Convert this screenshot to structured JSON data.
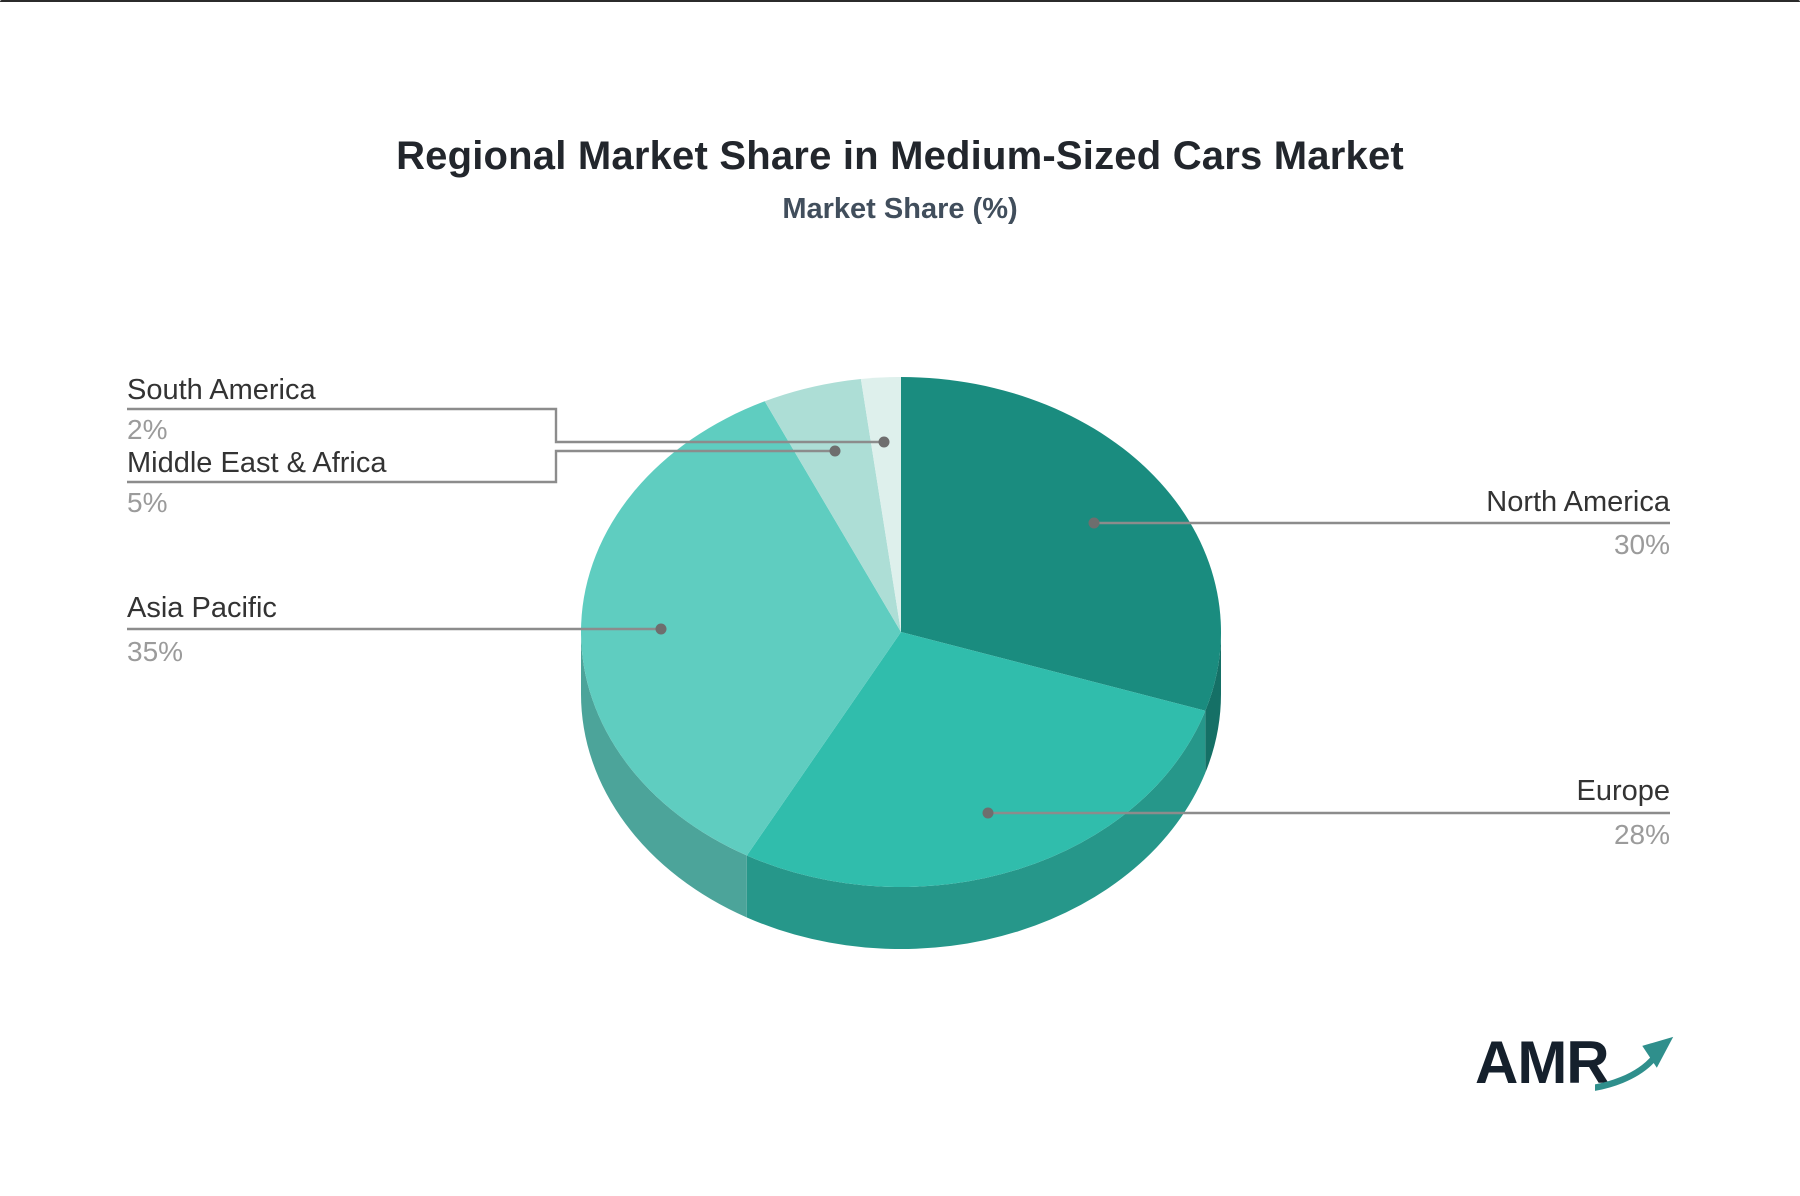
{
  "title": "Regional Market Share in Medium-Sized Cars Market",
  "subtitle": "Market Share (%)",
  "logo": {
    "text": "AMR"
  },
  "chart_data": {
    "type": "pie",
    "title": "Regional Market Share in Medium-Sized Cars Market",
    "subtitle": "Market Share (%)",
    "unit": "%",
    "style": "3d-pie",
    "start_angle": "12 o'clock",
    "direction": "clockwise",
    "legend_position": "none (callout labels with leader lines)",
    "slices": [
      {
        "label": "North America",
        "value": 30,
        "display": "30%",
        "color": "#1A8C7F",
        "callout_side": "right"
      },
      {
        "label": "Europe",
        "value": 28,
        "display": "28%",
        "color": "#30BDAC",
        "callout_side": "right"
      },
      {
        "label": "Asia Pacific",
        "value": 35,
        "display": "35%",
        "color": "#5FCDC0",
        "callout_side": "left"
      },
      {
        "label": "Middle East & Africa",
        "value": 5,
        "display": "5%",
        "color": "#ADDED6",
        "callout_side": "left"
      },
      {
        "label": "South America",
        "value": 2,
        "display": "2%",
        "color": "#DEF0EC",
        "callout_side": "left"
      }
    ]
  }
}
